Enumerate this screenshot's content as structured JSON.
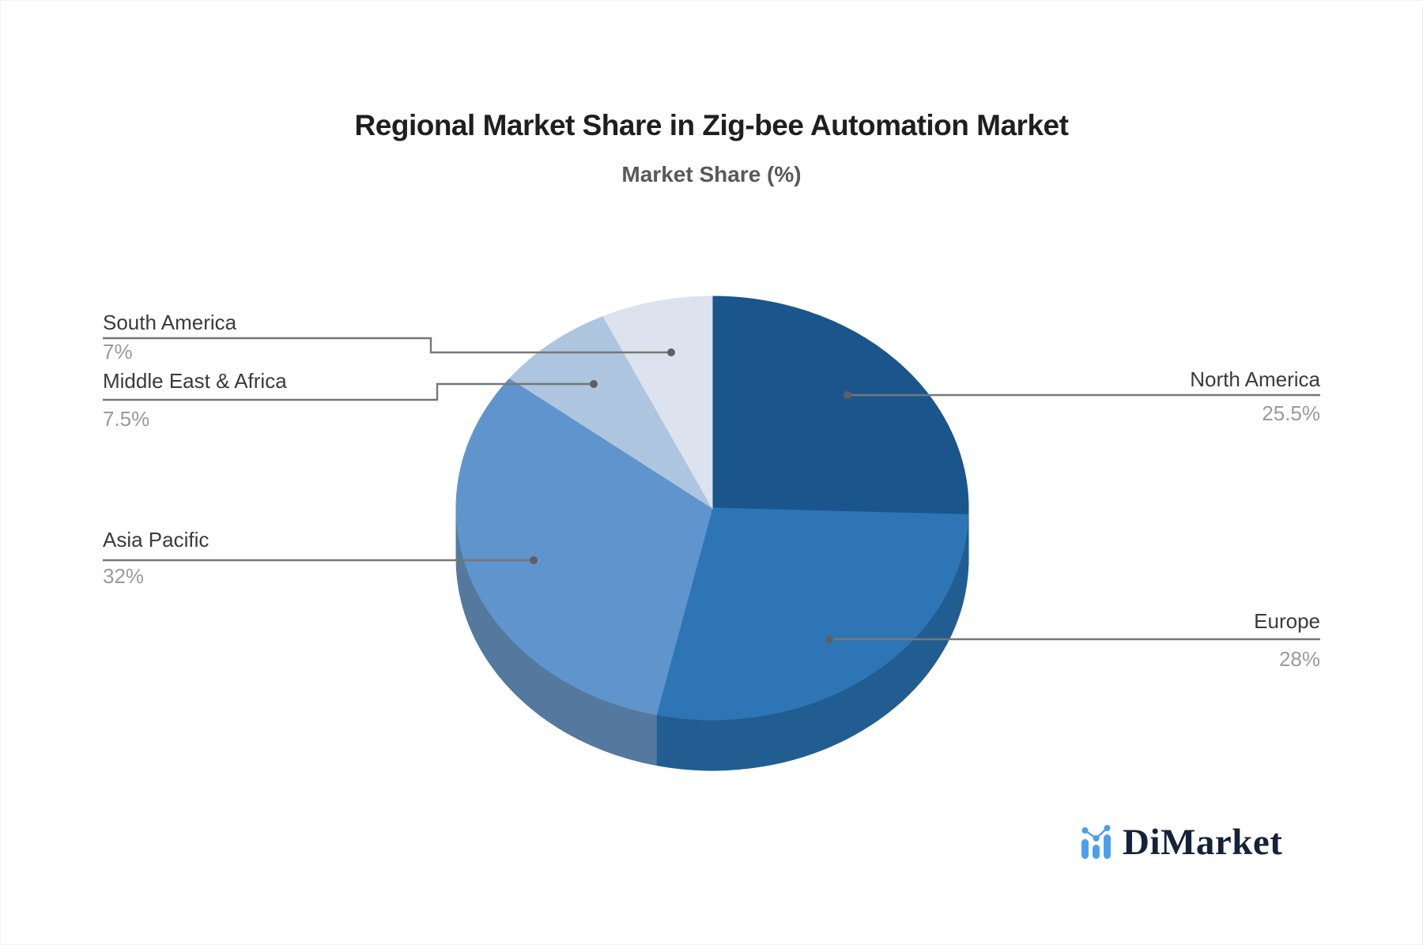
{
  "header": {
    "title": "Regional Market Share in Zig-bee Automation Market",
    "subtitle": "Market Share (%)"
  },
  "chart_data": {
    "type": "pie",
    "style": "3d",
    "title": "Regional Market Share in Zig-bee Automation Market",
    "subtitle": "Market Share (%)",
    "unit": "%",
    "start_angle_deg": 0,
    "clockwise": true,
    "legend": "callout-labels",
    "slices": [
      {
        "label": "North America",
        "value": 25.5,
        "display_value": "25.5%",
        "color": "#1a568c",
        "side_color": "#164a79",
        "callout_side": "right"
      },
      {
        "label": "Europe",
        "value": 28,
        "display_value": "28%",
        "color": "#2e75b6",
        "side_color": "#215d90",
        "callout_side": "right"
      },
      {
        "label": "Asia Pacific",
        "value": 32,
        "display_value": "32%",
        "color": "#5f95cc",
        "side_color": "#55799e",
        "callout_side": "left"
      },
      {
        "label": "Middle East & Africa",
        "value": 7.5,
        "display_value": "7.5%",
        "color": "#aec5e0",
        "side_color": "#8fa9c4",
        "callout_side": "left"
      },
      {
        "label": "South America",
        "value": 7,
        "display_value": "7%",
        "color": "#dce3ee",
        "side_color": "#b9c3d2",
        "callout_side": "left"
      }
    ],
    "label_text_color": "#3a3a3a",
    "value_text_color": "#9a9a9a",
    "callout_line_color": "#777777",
    "callout_dot_color": "#5f5f5f"
  },
  "branding": {
    "name": "DiMarket",
    "icon": "bar-line-chart-icon",
    "icon_color": "#4aa0ef",
    "text_color": "#16213a"
  }
}
